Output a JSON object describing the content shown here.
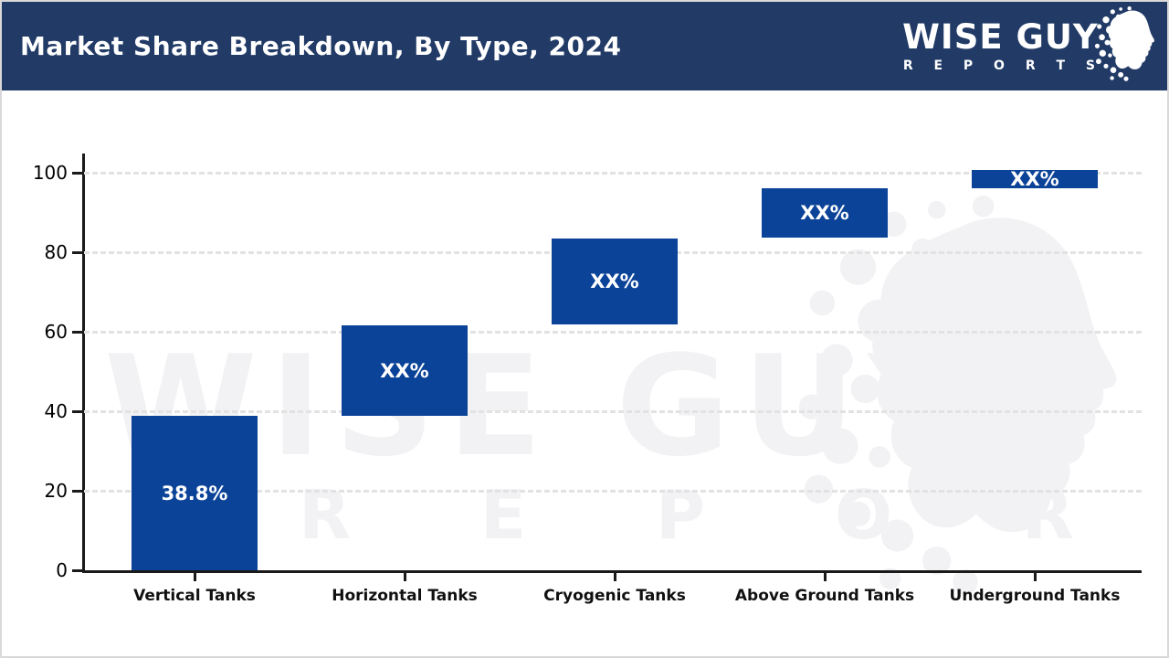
{
  "header": {
    "title": "Market Share Breakdown, By Type, 2024",
    "logo": {
      "wordmark": "WISE GUY",
      "subtext": "R E P O R T S",
      "head_icon": "dotted-head-profile-icon"
    },
    "bg_color": "#213a66"
  },
  "watermark": {
    "wordmark": "WISE GUY",
    "subtext": "R E P O R T S",
    "head_icon": "dotted-head-profile-icon",
    "color": "#f2f2f4"
  },
  "chart_data": {
    "type": "bar",
    "subtype": "waterfall",
    "title": "Market Share Breakdown, By Type, 2024",
    "categories": [
      "Vertical Tanks",
      "Horizontal Tanks",
      "Cryogenic Tanks",
      "Above Ground Tanks",
      "Underground Tanks"
    ],
    "segments": [
      {
        "category": "Vertical Tanks",
        "start": 0,
        "end": 38.8,
        "label": "38.8%"
      },
      {
        "category": "Horizontal Tanks",
        "start": 38.8,
        "end": 61.5,
        "label": "XX%"
      },
      {
        "category": "Cryogenic Tanks",
        "start": 61.8,
        "end": 83.4,
        "label": "XX%"
      },
      {
        "category": "Above Ground Tanks",
        "start": 83.7,
        "end": 96.1,
        "label": "XX%"
      },
      {
        "category": "Underground Tanks",
        "start": 96.2,
        "end": 100.6,
        "label": "XX%"
      }
    ],
    "yticks": [
      0,
      20,
      40,
      60,
      80,
      100
    ],
    "ylim": [
      0,
      105
    ],
    "xlabel": "",
    "ylabel": "",
    "grid": "horizontal-dashed",
    "legend": "none",
    "bar_color": "#0b4398",
    "value_label_color": "#ffffff"
  }
}
